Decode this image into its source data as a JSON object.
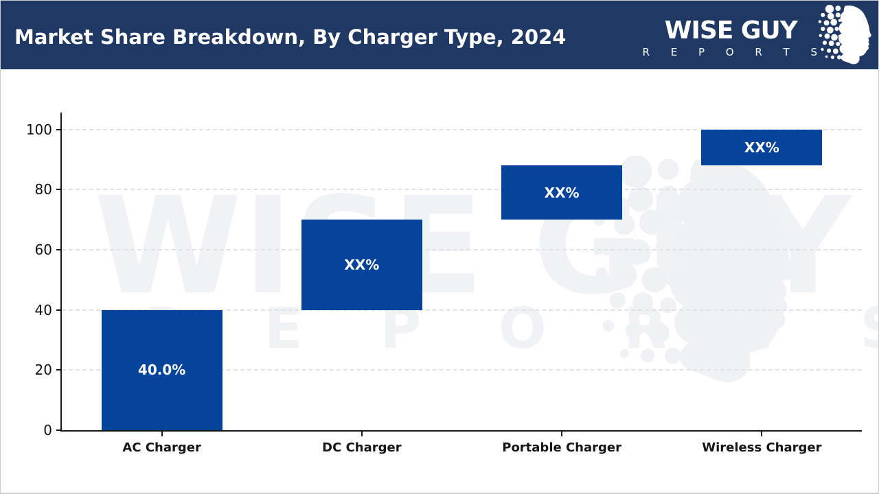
{
  "header": {
    "title": "Market Share Breakdown, By Charger Type, 2024",
    "bg_color": "#1f3864",
    "logo": {
      "line1": "WISE GUY",
      "line2": "R E P O R T S"
    }
  },
  "watermark": {
    "line1": "WISE GUY",
    "line2": "R E P O R T S"
  },
  "chart_data": {
    "type": "bar",
    "variant": "waterfall",
    "title": "Market Share Breakdown, By Charger Type, 2024",
    "categories": [
      "AC Charger",
      "DC Charger",
      "Portable Charger",
      "Wireless Charger"
    ],
    "segments": [
      {
        "category": "AC Charger",
        "start": 0,
        "end": 40,
        "label": "40.0%"
      },
      {
        "category": "DC Charger",
        "start": 40,
        "end": 70,
        "label": "XX%"
      },
      {
        "category": "Portable Charger",
        "start": 70,
        "end": 88,
        "label": "XX%"
      },
      {
        "category": "Wireless Charger",
        "start": 88,
        "end": 100,
        "label": "XX%"
      }
    ],
    "xlabel": "",
    "ylabel": "",
    "ylim": [
      0,
      100
    ],
    "yticks": [
      0,
      20,
      40,
      60,
      80,
      100
    ],
    "grid": "horizontal-dashed",
    "legend": "none",
    "bar_color": "#06439b",
    "bar_label_color": "#ffffff"
  }
}
